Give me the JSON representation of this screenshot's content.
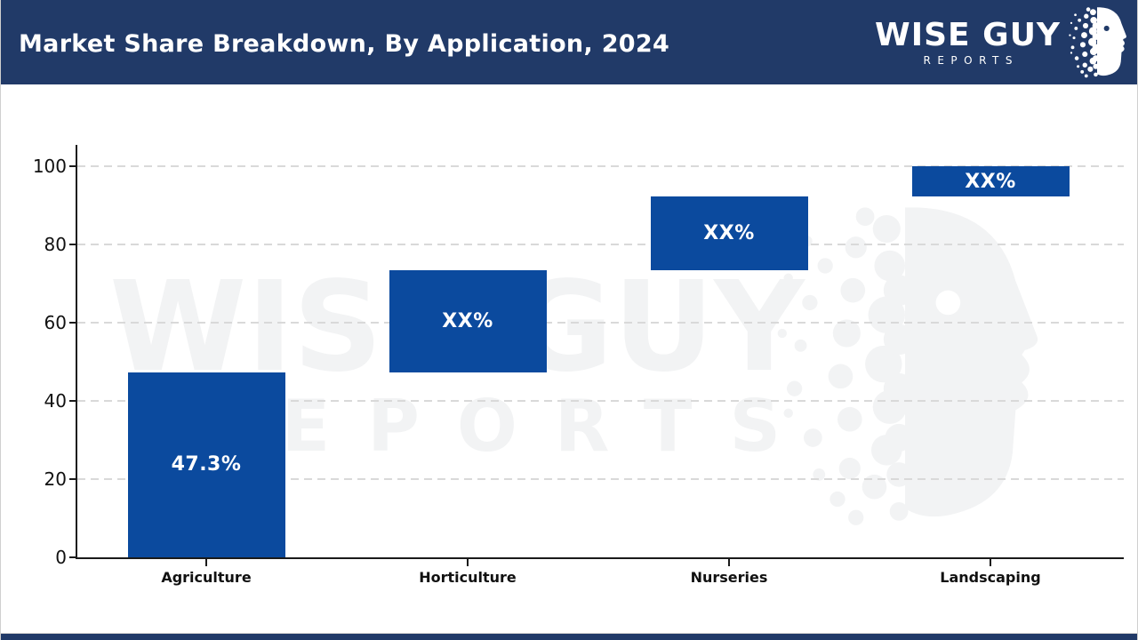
{
  "header": {
    "title": "Market Share Breakdown, By Application, 2024",
    "logo": {
      "name": "WISE GUY",
      "subname": "REPORTS",
      "face_icon": "dotted-head-profile"
    }
  },
  "watermark": {
    "line1": "WISE GUY",
    "line2": "REPORTS",
    "face_icon": "dotted-head-profile"
  },
  "colors": {
    "header_bg": "#213a68",
    "bar": "#0b4a9e",
    "bar_label": "#ffffff",
    "grid": "#d9d9d9",
    "axis": "#1a1a1a",
    "text": "#111111",
    "watermark": "#f2f3f4",
    "border": "#cfcfcf",
    "canvas": "#ffffff"
  },
  "chart_data": {
    "type": "bar",
    "subtype": "waterfall",
    "title": "Market Share Breakdown, By Application, 2024",
    "xlabel": "",
    "ylabel": "",
    "categories": [
      "Agriculture",
      "Horticulture",
      "Nurseries",
      "Landscaping"
    ],
    "segments": [
      {
        "category": "Agriculture",
        "start": 0,
        "end": 47.3,
        "label": "47.3%"
      },
      {
        "category": "Horticulture",
        "start": 47.3,
        "end": 73.5,
        "label": "XX%"
      },
      {
        "category": "Nurseries",
        "start": 73.5,
        "end": 92.2,
        "label": "XX%"
      },
      {
        "category": "Landscaping",
        "start": 92.2,
        "end": 100.0,
        "label": "XX%"
      }
    ],
    "yticks": [
      0,
      20,
      40,
      60,
      80,
      100
    ],
    "ylim": [
      0,
      105
    ],
    "grid": "horizontal-dashed",
    "legend": "none"
  }
}
